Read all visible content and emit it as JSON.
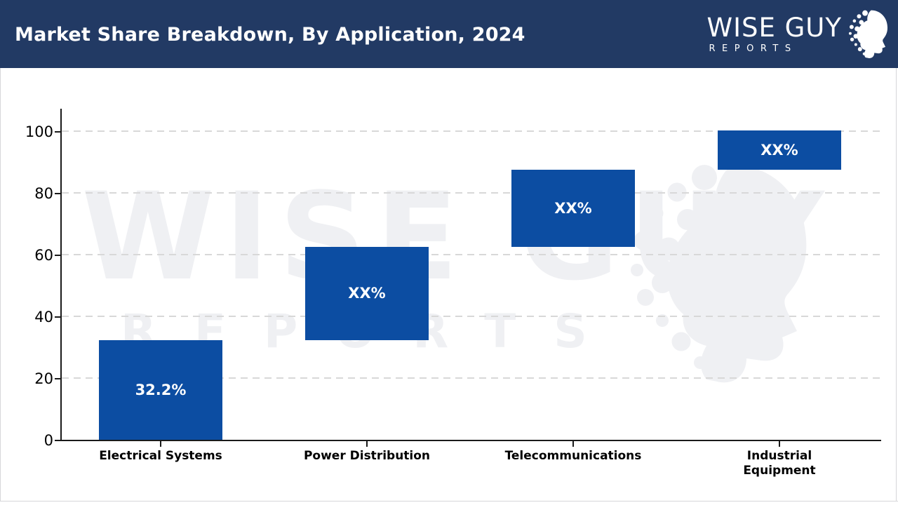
{
  "header": {
    "title": "Market Share Breakdown, By Application, 2024",
    "logo": {
      "line1": "WISE GUY",
      "line2": "REPORTS"
    }
  },
  "watermark": {
    "line1": "WISE GUY",
    "line2": "REPORTS"
  },
  "chart_data": {
    "type": "bar",
    "subtype": "stacked-waterfall-segments",
    "title": "Market Share Breakdown, By Application, 2024",
    "categories": [
      "Electrical Systems",
      "Power Distribution",
      "Telecommunications",
      "Industrial\nEquipment"
    ],
    "segments": [
      {
        "category": "Electrical Systems",
        "start": 0,
        "end": 32.2,
        "label": "32.2%"
      },
      {
        "category": "Power Distribution",
        "start": 32.2,
        "end": 62.6,
        "label": "XX%"
      },
      {
        "category": "Telecommunications",
        "start": 62.6,
        "end": 87.6,
        "label": "XX%"
      },
      {
        "category": "Industrial Equipment",
        "start": 87.6,
        "end": 100.2,
        "label": "XX%"
      }
    ],
    "yticks": [
      0,
      20,
      40,
      60,
      80,
      100
    ],
    "ylim": [
      0,
      107
    ],
    "xlabel": "",
    "ylabel": "",
    "grid": "horizontal-dashed",
    "legend": "none",
    "bar_color": "#0C4DA2"
  },
  "colors": {
    "header_bg": "#223A64",
    "bar": "#0C4DA2",
    "bar_label": "#FFFFFF",
    "axis": "#1A1A1A",
    "tick_label": "#000000",
    "grid_line": "#D8D8D8",
    "watermark": "#EFF0F3",
    "card_border": "#D6D6D9",
    "background": "#FFFFFF"
  }
}
